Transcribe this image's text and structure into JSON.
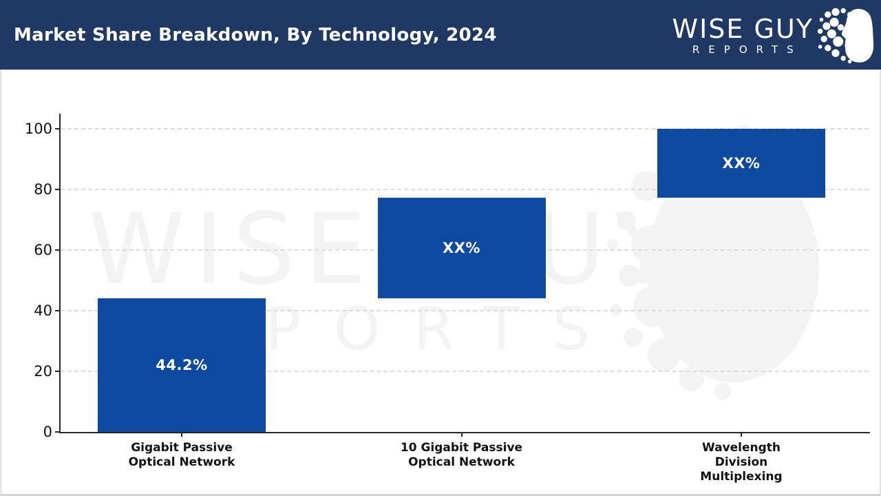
{
  "header": {
    "title": "Market Share Breakdown, By Technology, 2024",
    "logo_line1": "WISE GUY",
    "logo_line2": "REPORTS"
  },
  "watermark": {
    "line1": "WISE GUY",
    "line2": "REPORTS"
  },
  "icons": {
    "logo_face": "dotted-head-profile"
  },
  "colors": {
    "header_bg": "#203864",
    "bar": "#0d4a9f",
    "grid": "#dcdcdc",
    "axis": "#262626",
    "value_label": "#ffffff",
    "watermark": "#f3f3f3"
  },
  "chart_data": {
    "type": "bar",
    "subtype": "floating-waterfall",
    "title": "Market Share Breakdown, By Technology, 2024",
    "categories": [
      [
        "Gigabit Passive",
        "Optical Network"
      ],
      [
        "10 Gigabit Passive",
        "Optical Network"
      ],
      [
        "Wavelength",
        "Division",
        "Multiplexing"
      ]
    ],
    "series": [
      {
        "name": "Market Share (%)",
        "segments": [
          {
            "category": "Gigabit Passive Optical Network",
            "start": 0,
            "end": 44.2,
            "label": "44.2%"
          },
          {
            "category": "10 Gigabit Passive Optical Network",
            "start": 44.2,
            "end": 77.2,
            "label": "XX%"
          },
          {
            "category": "Wavelength Division Multiplexing",
            "start": 77.2,
            "end": 100,
            "label": "XX%"
          }
        ]
      }
    ],
    "ylim": [
      0,
      100
    ],
    "yticks": [
      0,
      20,
      40,
      60,
      80,
      100
    ],
    "xlabel": "",
    "ylabel": "",
    "grid": "dashed-horizontal",
    "legend": "none"
  }
}
